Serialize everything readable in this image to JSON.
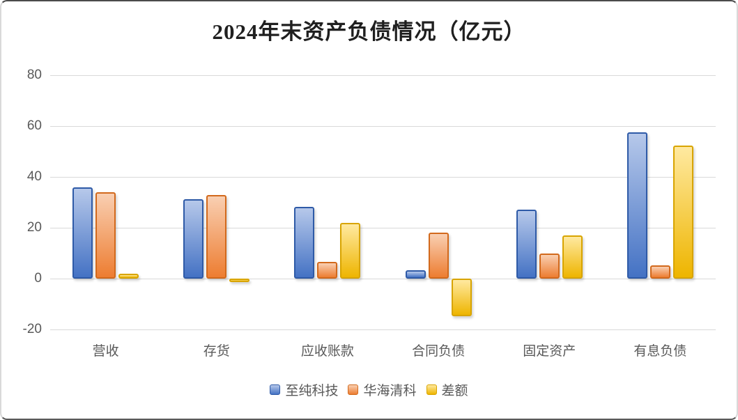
{
  "title": "2024年末资产负债情况（亿元）",
  "colors": {
    "grid": "#d9d9d9",
    "tick_text": "#595959",
    "title_text": "#1f1f1f",
    "background": "#ffffff"
  },
  "chart_data": {
    "type": "bar",
    "title": "2024年末资产负债情况（亿元）",
    "categories": [
      "营收",
      "存货",
      "应收账款",
      "合同负债",
      "固定资产",
      "有息负债"
    ],
    "series": [
      {
        "name": "至纯科技",
        "values": [
          36.0,
          31.3,
          28.3,
          3.2,
          27.0,
          57.5
        ],
        "fill_top": "#b6c8ea",
        "fill_bottom": "#4472c4",
        "border": "#2e5aa7"
      },
      {
        "name": "华海清科",
        "values": [
          34.0,
          32.8,
          6.5,
          18.0,
          9.9,
          5.2
        ],
        "fill_top": "#f9cfb2",
        "fill_bottom": "#ed7d31",
        "border": "#d2691c"
      },
      {
        "name": "差额",
        "values": [
          2.0,
          -1.5,
          21.8,
          -14.8,
          17.1,
          52.3
        ],
        "fill_top": "#ffe9a0",
        "fill_bottom": "#eeb500",
        "border": "#d8a400"
      }
    ],
    "xlabel": "",
    "ylabel": "",
    "ylim": [
      -20,
      80
    ],
    "yticks": [
      80,
      60,
      40,
      20,
      0,
      -20
    ],
    "grid": true,
    "legend_position": "bottom"
  }
}
